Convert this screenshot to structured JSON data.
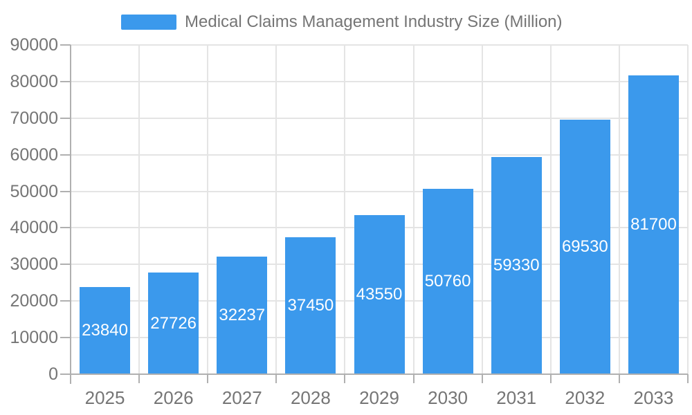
{
  "chart_data": {
    "type": "bar",
    "title": "Medical Claims Management Industry Size (Million)",
    "categories": [
      "2025",
      "2026",
      "2027",
      "2028",
      "2029",
      "2030",
      "2031",
      "2032",
      "2033"
    ],
    "values": [
      23840,
      27726,
      32237,
      37450,
      43550,
      50760,
      59330,
      69530,
      81700
    ],
    "value_labels": [
      "23840",
      "27726",
      "32237",
      "37450",
      "43550",
      "50760",
      "59330",
      "69530",
      "81700"
    ],
    "xlabel": "",
    "ylabel": "",
    "ylim": [
      0,
      90000
    ],
    "ytick_step": 10000,
    "ytick_labels": [
      "0",
      "10000",
      "20000",
      "30000",
      "40000",
      "50000",
      "60000",
      "70000",
      "80000",
      "90000"
    ],
    "grid": true,
    "legend_position": "top-center",
    "value_label_position": "inside-center",
    "colors": {
      "bar": "#3B99EC",
      "value_label_text": "#FFFFFF",
      "axis_text": "#757575",
      "axis_line": "#B0B0B0",
      "gridline": "#E4E4E4",
      "background": "#FFFFFF"
    }
  }
}
